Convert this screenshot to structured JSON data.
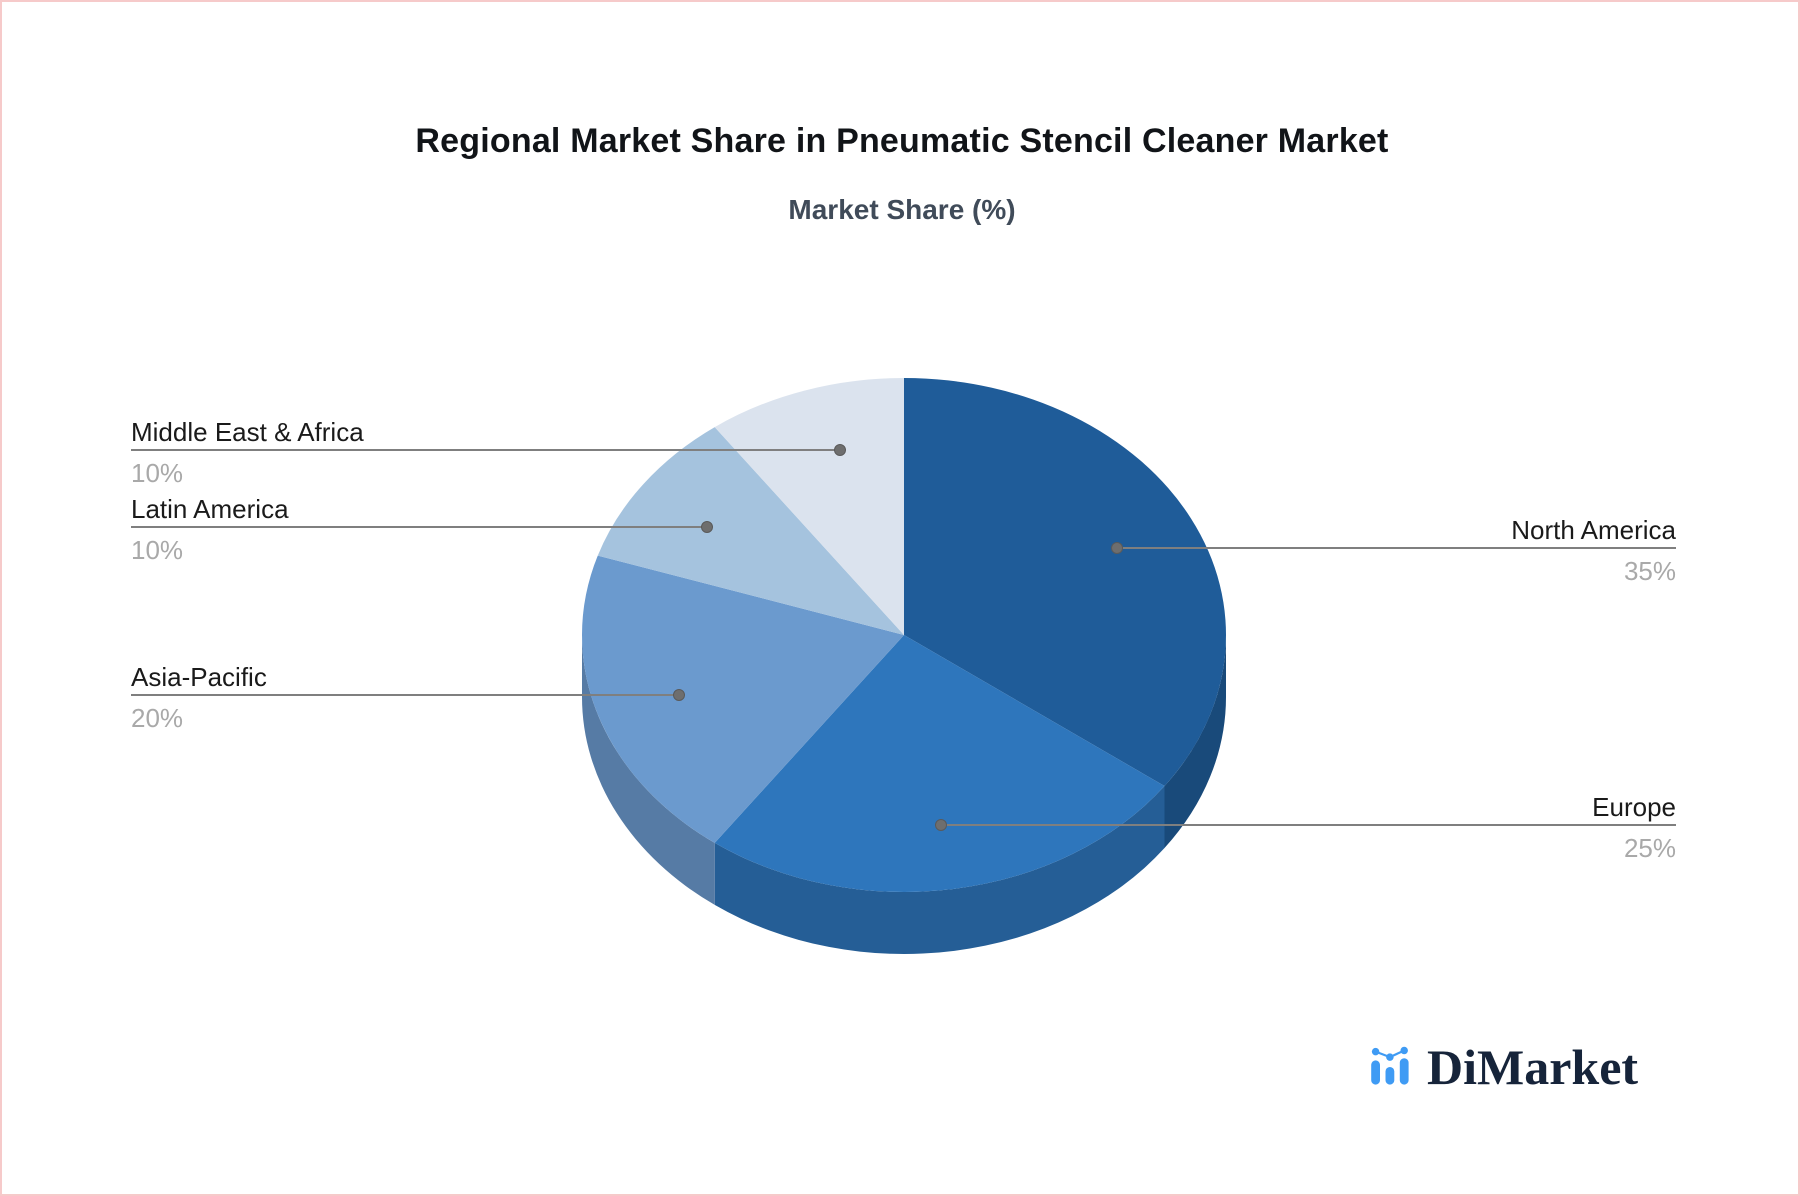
{
  "title": "Regional Market Share in Pneumatic Stencil Cleaner Market",
  "subtitle": "Market Share (%)",
  "logo": {
    "text": "DiMarket",
    "icon": "bar-chart-logo-icon"
  },
  "chart_data": {
    "type": "pie",
    "style": "3d",
    "title": "Regional Market Share in Pneumatic Stencil Cleaner Market",
    "subtitle": "Market Share (%)",
    "start_angle_deg": 0,
    "direction": "clockwise",
    "legend_position": "none",
    "leader_line_color": "#7f7f7f",
    "dot_color": "#6e6e6e",
    "label_color": "#1a1a1a",
    "pct_color": "#a9a9a9",
    "slices": [
      {
        "label": "North America",
        "value": 35,
        "pct_label": "35%",
        "color": "#1f5c99",
        "label_side": "right"
      },
      {
        "label": "Europe",
        "value": 25,
        "pct_label": "25%",
        "color": "#2e76bc",
        "label_side": "right"
      },
      {
        "label": "Asia-Pacific",
        "value": 20,
        "pct_label": "20%",
        "color": "#6b9ace",
        "label_side": "left"
      },
      {
        "label": "Latin America",
        "value": 10,
        "pct_label": "10%",
        "color": "#a5c3de",
        "label_side": "left"
      },
      {
        "label": "Middle East & Africa",
        "value": 10,
        "pct_label": "10%",
        "color": "#dbe3ee",
        "label_side": "left"
      }
    ]
  }
}
